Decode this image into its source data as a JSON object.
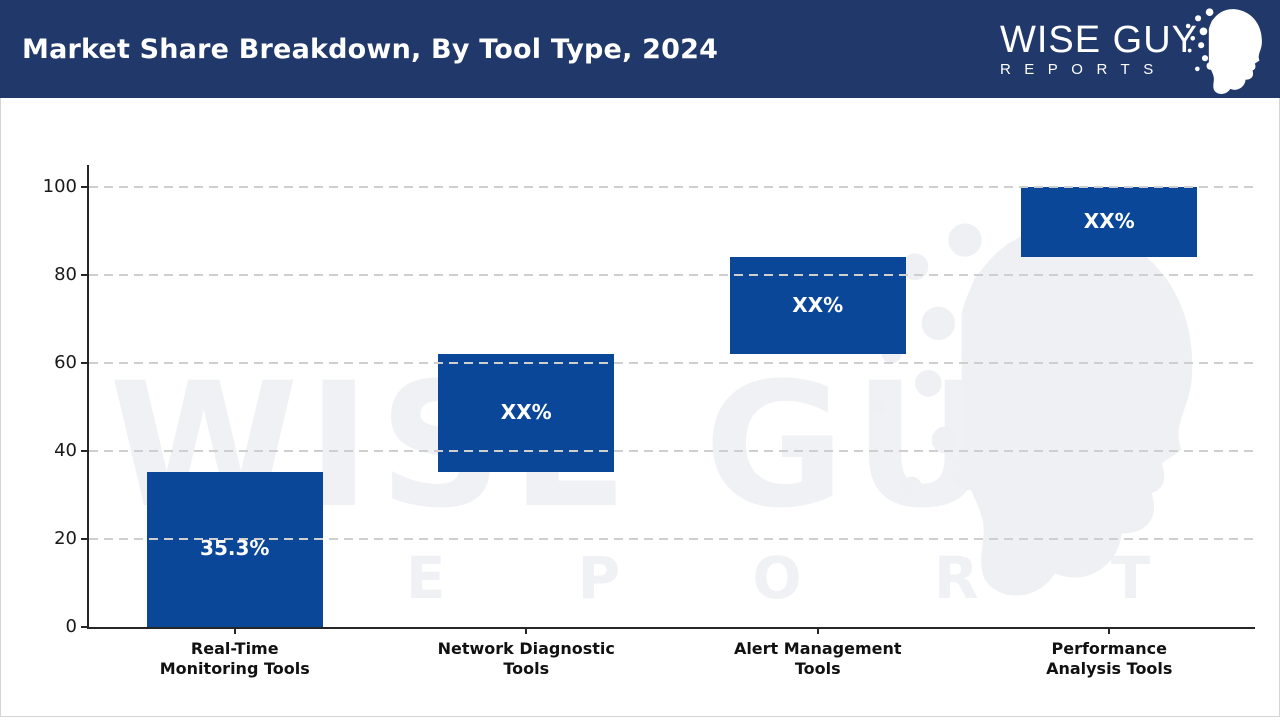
{
  "header": {
    "title": "Market Share Breakdown, By Tool Type, 2024",
    "logo_line1": "WISE GUY",
    "logo_line2": "REPORTS"
  },
  "watermark": {
    "line1": "WISE GUY",
    "line2": "R E P O R T S"
  },
  "colors": {
    "header_bg": "#21386a",
    "bar": "#0b4798",
    "grid": "#cfcfcf",
    "axis": "#262626",
    "watermark": "#f0f1f4"
  },
  "chart_data": {
    "type": "bar",
    "subtype": "waterfall",
    "title": "Market Share Breakdown, By Tool Type, 2024",
    "categories": [
      "Real-Time\nMonitoring Tools",
      "Network Diagnostic\nTools",
      "Alert Management\nTools",
      "Performance\nAnalysis Tools"
    ],
    "segments": [
      {
        "category": "Real-Time Monitoring Tools",
        "start": 0,
        "end": 35.3,
        "label": "35.3%"
      },
      {
        "category": "Network Diagnostic Tools",
        "start": 35.3,
        "end": 62,
        "label": "XX%"
      },
      {
        "category": "Alert Management Tools",
        "start": 62,
        "end": 84,
        "label": "XX%"
      },
      {
        "category": "Performance Analysis Tools",
        "start": 84,
        "end": 100,
        "label": "XX%"
      }
    ],
    "xlabel": "",
    "ylabel": "",
    "yticks": [
      0,
      20,
      40,
      60,
      80,
      100
    ],
    "ylim": [
      0,
      105
    ],
    "grid": "dashed horizontal, drawn over bars",
    "legend": "none",
    "bar_color": "#0b4798"
  }
}
